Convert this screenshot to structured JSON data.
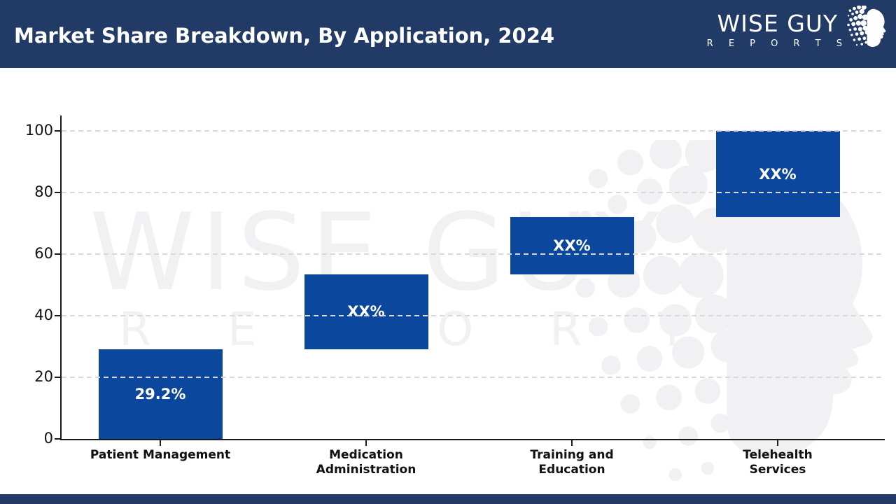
{
  "header": {
    "title": "Market Share Breakdown, By Application, 2024",
    "logo": {
      "wise_guy": "WISE GUY",
      "reports": "R E P O R T S"
    }
  },
  "watermark": {
    "wise_guy": "WISE GUY",
    "reports": "R E P O R T S"
  },
  "colors": {
    "header_bg": "#213a66",
    "footer_bg": "#213a66",
    "title": "#ffffff",
    "bar": "#0b479c",
    "bar_label": "#ffffff",
    "grid": "#d9d9d9",
    "axis": "#1a1a1a",
    "tick_label": "#111111",
    "watermark": "#f1f1f4"
  },
  "chart_data": {
    "type": "bar",
    "subtype": "waterfall",
    "title": "Market Share Breakdown, By Application, 2024",
    "categories": [
      "Patient Management",
      "Medication Administration",
      "Training and Education",
      "Telehealth Services"
    ],
    "y_ticks": [
      0,
      20,
      40,
      60,
      80,
      100
    ],
    "ylim": [
      0,
      100
    ],
    "grid": "horizontal-dashed",
    "legend": false,
    "bar_color": "#0b479c",
    "segments": [
      {
        "category": "Patient Management",
        "label_lines": [
          "Patient Management"
        ],
        "start": 0,
        "end": 29.2,
        "value": 29.2,
        "label": "29.2%"
      },
      {
        "category": "Medication Administration",
        "label_lines": [
          "Medication",
          "Administration"
        ],
        "start": 29.2,
        "end": 53.4,
        "value": 24.2,
        "label": "XX%"
      },
      {
        "category": "Training and Education",
        "label_lines": [
          "Training and",
          "Education"
        ],
        "start": 53.4,
        "end": 72,
        "value": 18.6,
        "label": "XX%"
      },
      {
        "category": "Telehealth Services",
        "label_lines": [
          "Telehealth",
          "Services"
        ],
        "start": 72,
        "end": 100,
        "value": 28,
        "label": "XX%"
      }
    ]
  }
}
